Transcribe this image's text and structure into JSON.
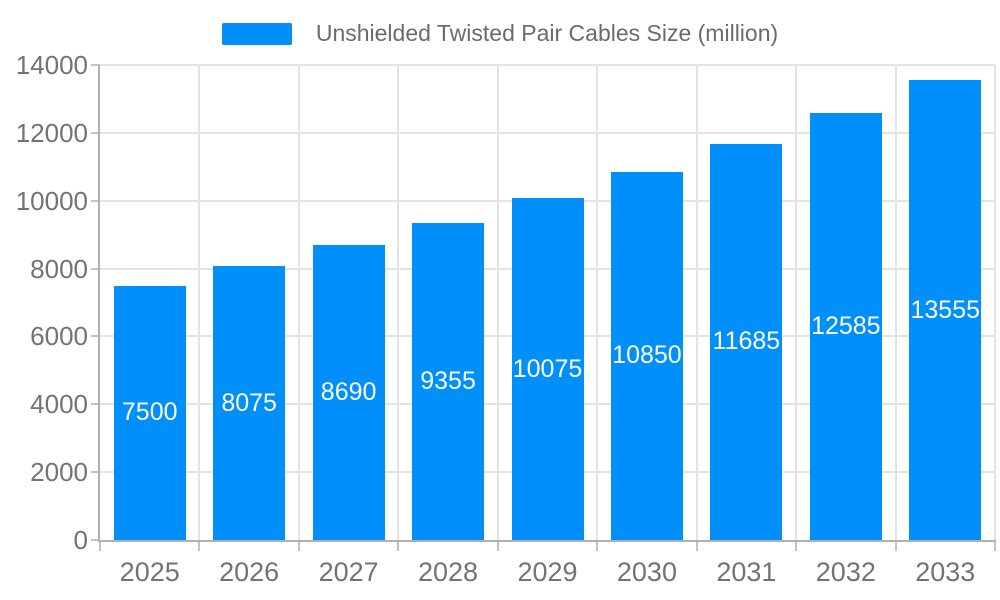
{
  "chart_data": {
    "type": "bar",
    "title": "Unshielded Twisted Pair Cables Size (million)",
    "categories": [
      "2025",
      "2026",
      "2027",
      "2028",
      "2029",
      "2030",
      "2031",
      "2032",
      "2033"
    ],
    "series": [
      {
        "name": "Unshielded Twisted Pair Cables Size (million)",
        "values": [
          7500,
          8075,
          8690,
          9355,
          10075,
          10850,
          11685,
          12585,
          13555
        ]
      }
    ],
    "xlabel": "",
    "ylabel": "",
    "ylim": [
      0,
      14000
    ],
    "yticks": [
      0,
      2000,
      4000,
      6000,
      8000,
      10000,
      12000,
      14000
    ],
    "grid": "on",
    "legend_position": "top",
    "data_labels": "inside-center",
    "colors": {
      "bar": "#008FFB",
      "bar_label": "#FFFFFF",
      "axis_label": "#737373",
      "legend_text": "#6B6B6B",
      "gridline": "#E4E4E4",
      "axis_line": "#B0B0B0",
      "tick": "#C2C2C2",
      "background": "#FFFFFF"
    }
  }
}
